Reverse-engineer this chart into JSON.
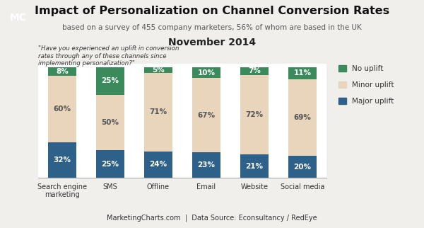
{
  "title": "Impact of Personalization on Channel Conversion Rates",
  "subtitle": "based on a survey of 455 company marketers, 56% of whom are based in the UK",
  "date_label": "November 2014",
  "question": "\"Have you experienced an uplift in conversion\nrates through any of these channels since\nimplementing personalization?\"",
  "footer": "MarketingCharts.com  |  Data Source: Econsultancy / RedEye",
  "categories": [
    "Search engine\nmarketing",
    "SMS",
    "Offline",
    "Email",
    "Website",
    "Social media"
  ],
  "major_uplift": [
    32,
    25,
    24,
    23,
    21,
    20
  ],
  "minor_uplift": [
    60,
    50,
    71,
    67,
    72,
    69
  ],
  "no_uplift": [
    8,
    25,
    5,
    10,
    7,
    11
  ],
  "color_major": "#2e6189",
  "color_minor": "#e8d5bc",
  "color_no": "#3a8a5c",
  "bg_color": "#f0efeb",
  "bar_bg": "#ffffff",
  "mc_box_color": "#e8a020",
  "footer_bg": "#c8c8c8",
  "footer_color": "#333333",
  "title_fontsize": 11.5,
  "subtitle_fontsize": 7.5,
  "date_fontsize": 10,
  "bar_width": 0.6
}
